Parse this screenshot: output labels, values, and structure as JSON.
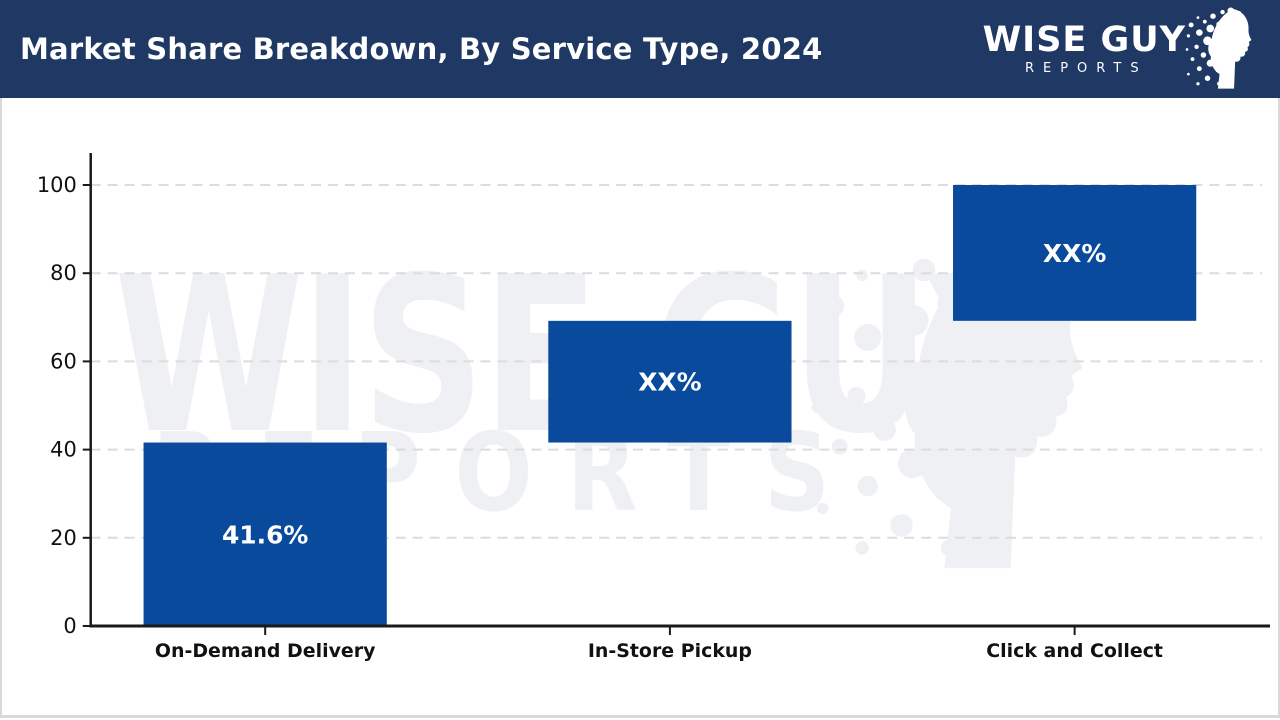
{
  "header": {
    "title": "Market Share Breakdown, By Service Type, 2024",
    "logo": {
      "line1": "WISE GUY",
      "line2": "REPORTS"
    }
  },
  "watermark": {
    "line1": "WISE GUY",
    "line2": "REPORTS"
  },
  "chart_data": {
    "type": "bar",
    "subtype": "waterfall",
    "title": "Market Share Breakdown, By Service Type, 2024",
    "categories": [
      "On-Demand Delivery",
      "In-Store Pickup",
      "Click and Collect"
    ],
    "segments": [
      {
        "category": "On-Demand Delivery",
        "start": 0,
        "end": 41.6,
        "label": "41.6%"
      },
      {
        "category": "In-Store Pickup",
        "start": 41.6,
        "end": 69.2,
        "label": "XX%"
      },
      {
        "category": "Click and Collect",
        "start": 69.2,
        "end": 100,
        "label": "XX%"
      }
    ],
    "xlabel": "",
    "ylabel": "",
    "ylim": [
      0,
      100
    ],
    "yticks": [
      0,
      20,
      40,
      60,
      80,
      100
    ],
    "grid": "horizontal-dashed",
    "legend": "none",
    "colors": {
      "bar": "#0a4a9d",
      "bar_label": "#ffffff",
      "axis": "#1a1a1a",
      "tick_label": "#111111",
      "gridline": "#dcdcdc",
      "header_bg": "#1f3864",
      "watermark": "#eff0f3"
    }
  }
}
